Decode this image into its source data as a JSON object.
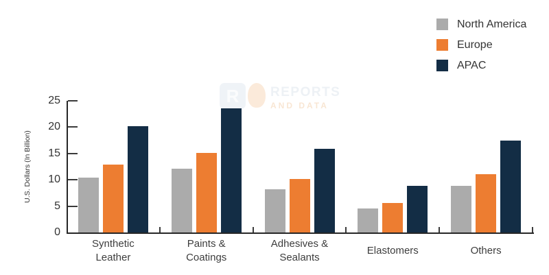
{
  "watermark": {
    "logo_letter": "R",
    "line1": "REPORTS",
    "line2": "AND DATA"
  },
  "chart_data": {
    "type": "bar",
    "title": "",
    "xlabel": "",
    "ylabel": "U.S. Dollars (In Billion)",
    "categories": [
      "Synthetic\nLeather",
      "Paints &\nCoatings",
      "Adhesives &\nSealants",
      "Elastomers",
      "Others"
    ],
    "series": [
      {
        "name": "North America",
        "color": "#ababab",
        "values": [
          10.4,
          12.1,
          8.2,
          4.5,
          8.9
        ]
      },
      {
        "name": "Europe",
        "color": "#ed7d31",
        "values": [
          12.9,
          15.1,
          10.2,
          5.6,
          11.1
        ]
      },
      {
        "name": "APAC",
        "color": "#132d45",
        "values": [
          20.2,
          23.6,
          15.9,
          8.8,
          17.4
        ]
      }
    ],
    "yticks": [
      0,
      5,
      10,
      15,
      20,
      25
    ],
    "ylim": [
      0,
      25
    ],
    "grid": false,
    "legend_position": "top-right",
    "axis_color": "#262626",
    "text_color": "#333333"
  }
}
